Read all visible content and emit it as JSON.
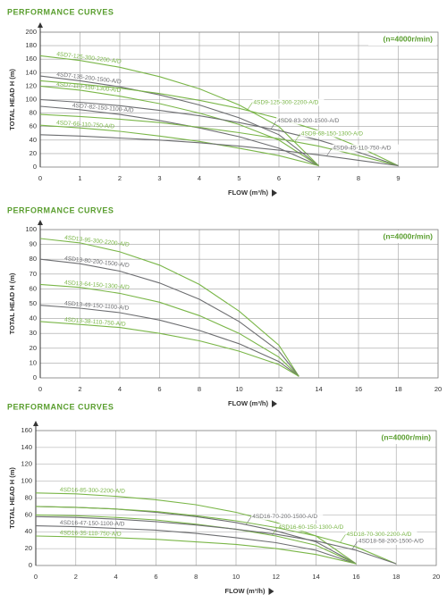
{
  "chart_data": [
    {
      "type": "line",
      "title": "PERFORMANCE CURVES",
      "annotation": "(n=4000r/min)",
      "x_label": "FLOW (m³/h)",
      "y_label": "TOTAL HEAD H (m)",
      "x": [
        0,
        1,
        2,
        3,
        4,
        5,
        6,
        7,
        8,
        9
      ],
      "xlim": [
        0,
        10
      ],
      "xticks": [
        0,
        1,
        2,
        3,
        4,
        5,
        6,
        7,
        8,
        9
      ],
      "ylim": [
        0,
        200
      ],
      "yticks": [
        0,
        20,
        40,
        60,
        80,
        100,
        120,
        140,
        160,
        180,
        200
      ],
      "grid": true,
      "series": [
        {
          "name": "4SD7-125-300-2200-A/D",
          "color": "#7ab648",
          "values": [
            165,
            158,
            148,
            134,
            116,
            92,
            60,
            2,
            null,
            null
          ]
        },
        {
          "name": "4SD7-135-200-1500-A/D",
          "color": "#6d6e71",
          "values": [
            135,
            128,
            119,
            107,
            92,
            73,
            48,
            2,
            null,
            null
          ]
        },
        {
          "name": "4SD7-110-150-1300-A/D",
          "color": "#7ab648",
          "values": [
            120,
            114,
            105,
            94,
            80,
            63,
            40,
            2,
            null,
            null
          ]
        },
        {
          "name": "4SD7-82-150-1100-A/D",
          "color": "#6d6e71",
          "values": [
            90,
            85,
            78,
            69,
            58,
            45,
            28,
            2,
            null,
            null
          ]
        },
        {
          "name": "4SD7-66-110-750-A/D",
          "color": "#7ab648",
          "values": [
            62,
            58,
            53,
            46,
            38,
            28,
            17,
            2,
            null,
            null
          ]
        },
        {
          "name": "4SD9-125-300-2200-A/D",
          "color": "#7ab648",
          "values": [
            128,
            123,
            117,
            109,
            99,
            87,
            72,
            54,
            30,
            2
          ]
        },
        {
          "name": "4SD9-83-200-1500-A/D",
          "color": "#6d6e71",
          "values": [
            100,
            96,
            91,
            84,
            76,
            66,
            54,
            40,
            22,
            2
          ]
        },
        {
          "name": "4SD9-68-150-1300-A/D",
          "color": "#7ab648",
          "values": [
            78,
            75,
            71,
            66,
            59,
            51,
            42,
            31,
            17,
            2
          ]
        },
        {
          "name": "4SD9-45-110-750-A/D",
          "color": "#6d6e71",
          "values": [
            48,
            46,
            43,
            40,
            36,
            31,
            25,
            18,
            10,
            2
          ]
        }
      ]
    },
    {
      "type": "line",
      "title": "PERFORMANCE CURVES",
      "annotation": "(n=4000r/min)",
      "x_label": "FLOW (m³/h)",
      "y_label": "TOTAL HEAD H (m)",
      "x": [
        0,
        2,
        4,
        6,
        8,
        10,
        12,
        13
      ],
      "xlim": [
        0,
        20
      ],
      "xticks": [
        0,
        2,
        4,
        6,
        8,
        10,
        12,
        14,
        16,
        18,
        20
      ],
      "ylim": [
        0,
        100
      ],
      "yticks": [
        0,
        10,
        20,
        30,
        40,
        50,
        60,
        70,
        80,
        90,
        100
      ],
      "grid": true,
      "series": [
        {
          "name": "4SD13-95-300-2200-A/D",
          "color": "#7ab648",
          "values": [
            94,
            91,
            85,
            76,
            63,
            45,
            22,
            1
          ]
        },
        {
          "name": "4SD13-80-200-1500-A/D",
          "color": "#6d6e71",
          "values": [
            80,
            77,
            72,
            64,
            53,
            38,
            18,
            1
          ]
        },
        {
          "name": "4SD13-64-150-1300-A/D",
          "color": "#7ab648",
          "values": [
            63,
            61,
            57,
            51,
            42,
            30,
            14,
            1
          ]
        },
        {
          "name": "4SD13-49-150-1100-A/D",
          "color": "#6d6e71",
          "values": [
            49,
            47,
            44,
            39,
            32,
            23,
            11,
            1
          ]
        },
        {
          "name": "4SD13-38-110-750-A/D",
          "color": "#7ab648",
          "values": [
            38,
            36,
            34,
            30,
            25,
            18,
            9,
            1
          ]
        }
      ]
    },
    {
      "type": "line",
      "title": "PERFORMANCE CURVES",
      "annotation": "(n=4000r/min)",
      "x_label": "FLOW (m³/h)",
      "y_label": "TOTAL HEAD H (m)",
      "x": [
        0,
        2,
        4,
        6,
        8,
        10,
        12,
        14,
        16,
        18
      ],
      "xlim": [
        0,
        20
      ],
      "xticks": [
        0,
        2,
        4,
        6,
        8,
        10,
        12,
        14,
        16,
        18,
        20
      ],
      "ylim": [
        0,
        160
      ],
      "yticks": [
        0,
        20,
        40,
        60,
        80,
        100,
        120,
        140,
        160
      ],
      "grid": true,
      "series": [
        {
          "name": "4SD16-85-300-2200-A/D",
          "color": "#7ab648",
          "values": [
            86,
            85,
            82,
            78,
            72,
            63,
            51,
            35,
            2,
            null
          ]
        },
        {
          "name": "4SD16-70-200-1500-A/D",
          "color": "#6d6e71",
          "values": [
            70,
            69,
            67,
            63,
            58,
            51,
            41,
            28,
            2,
            null
          ]
        },
        {
          "name": "4SD16-60-150-1300-A/D",
          "color": "#7ab648",
          "values": [
            60,
            59,
            57,
            54,
            49,
            43,
            35,
            24,
            2,
            null
          ]
        },
        {
          "name": "4SD16-47-150-1100-A/D",
          "color": "#6d6e71",
          "values": [
            47,
            46,
            44,
            42,
            38,
            33,
            27,
            18,
            2,
            null
          ]
        },
        {
          "name": "4SD16-35-110-750-A/D",
          "color": "#7ab648",
          "values": [
            35,
            34,
            33,
            31,
            28,
            25,
            20,
            13,
            2,
            null
          ]
        },
        {
          "name": "4SD18-70-300-2200-A/D",
          "color": "#7ab648",
          "values": [
            70,
            69,
            67,
            64,
            59,
            53,
            45,
            35,
            22,
            2
          ]
        },
        {
          "name": "4SD18-58-200-1500-A/D",
          "color": "#6d6e71",
          "values": [
            58,
            57,
            55,
            52,
            48,
            43,
            37,
            29,
            18,
            2
          ]
        }
      ]
    }
  ]
}
